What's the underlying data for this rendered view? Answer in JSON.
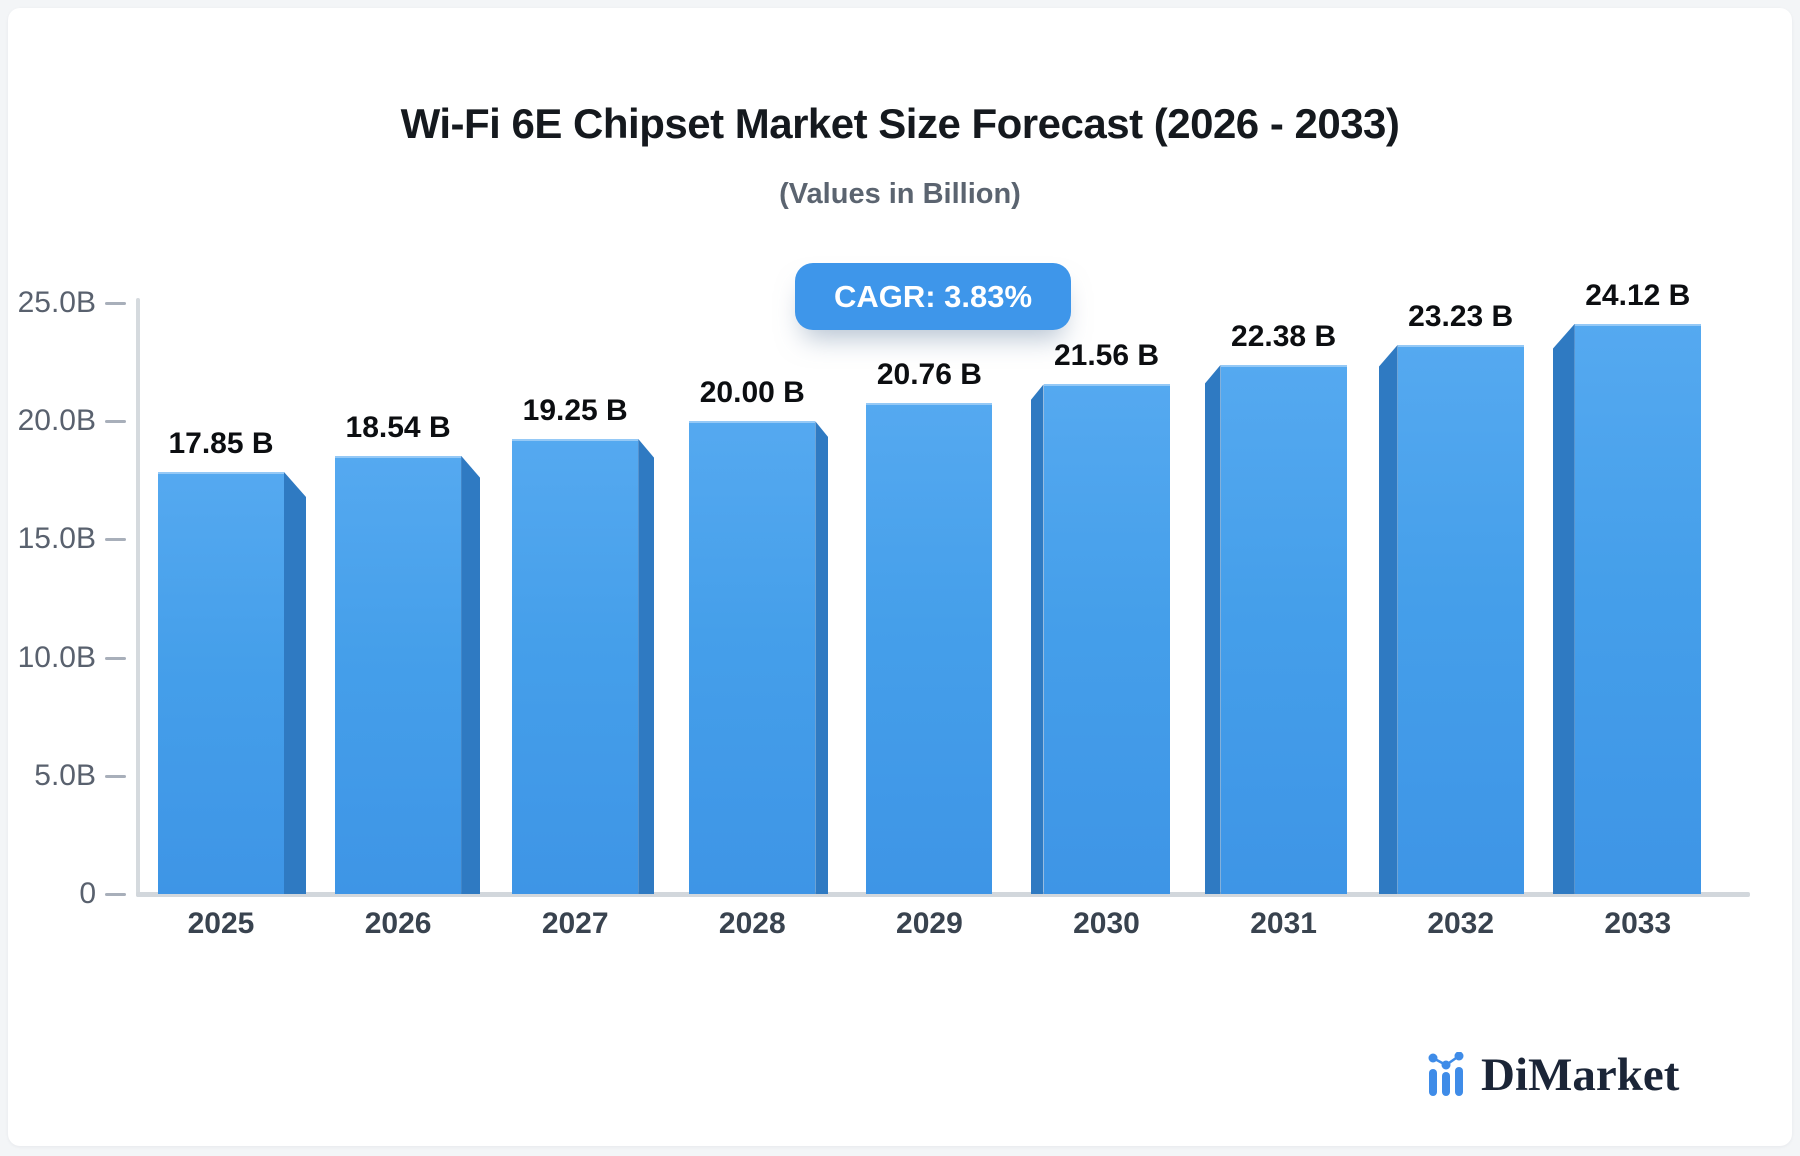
{
  "header": {
    "title": "Wi-Fi 6E Chipset Market Size Forecast (2026 - 2033)",
    "subtitle": "(Values in Billion)"
  },
  "badge": {
    "label": "CAGR: 3.83%",
    "color": "#3e96ea"
  },
  "chart_data": {
    "type": "bar",
    "title": "Wi-Fi 6E Chipset Market Size Forecast (2026 - 2033)",
    "subtitle": "(Values in Billion)",
    "categories": [
      "2025",
      "2026",
      "2027",
      "2028",
      "2029",
      "2030",
      "2031",
      "2032",
      "2033"
    ],
    "values": [
      17.85,
      18.54,
      19.25,
      20.0,
      20.76,
      21.56,
      22.38,
      23.23,
      24.12
    ],
    "value_labels": [
      "17.85 B",
      "18.54 B",
      "19.25 B",
      "20.00 B",
      "20.76 B",
      "21.56 B",
      "22.38 B",
      "23.23 B",
      "24.12 B"
    ],
    "xlabel": "",
    "ylabel": "",
    "ylim": [
      0,
      25
    ],
    "y_ticks": [
      {
        "label": "25.0B",
        "value": 25
      },
      {
        "label": "20.0B",
        "value": 20
      },
      {
        "label": "15.0B",
        "value": 15
      },
      {
        "label": "10.0B",
        "value": 10
      },
      {
        "label": "5.0B",
        "value": 5
      },
      {
        "label": "0",
        "value": 0
      }
    ],
    "grid": false,
    "legend_position": "none",
    "annotation": "CAGR: 3.83%",
    "bar_face_color": "#459fea",
    "bar_side_color": "#2f7ac2"
  },
  "logo": {
    "text": "DiMarket",
    "icon": "bar-chart-logo-icon",
    "icon_color": "#3f8ce8",
    "text_color": "#1b2537"
  }
}
